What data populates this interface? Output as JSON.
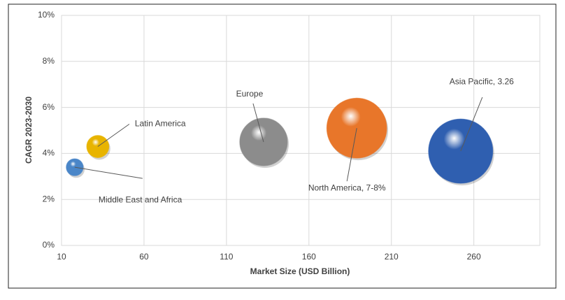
{
  "chart_data": {
    "type": "bubble",
    "x_label": "Market Size (USD Billion)",
    "y_label": "CAGR 2023-2030",
    "labels": [
      "Middle East and Africa",
      "Latin America",
      "Europe",
      "North America, 7-8%",
      "Asia Pacific, 3.26"
    ],
    "x": [
      18,
      32,
      132.5,
      189,
      252
    ],
    "values": [
      3.4,
      4.3,
      4.5,
      5.1,
      4.1
    ],
    "sizes": [
      7,
      12,
      55,
      87,
      100
    ],
    "colors": [
      "#4a86c8",
      "#e8b400",
      "#8c8c8c",
      "#e8762a",
      "#2f5fb0"
    ],
    "xlim": [
      10,
      300
    ],
    "xticks": [
      10,
      60,
      110,
      160,
      210,
      260
    ],
    "ylim": [
      0,
      10
    ],
    "yticks": [
      {
        "value": 0,
        "label": "0%"
      },
      {
        "value": 2,
        "label": "2%"
      },
      {
        "value": 4,
        "label": "4%"
      },
      {
        "value": 6,
        "label": "6%"
      },
      {
        "value": 8,
        "label": "8%"
      },
      {
        "value": 10,
        "label": "10%"
      }
    ],
    "grid": true
  }
}
